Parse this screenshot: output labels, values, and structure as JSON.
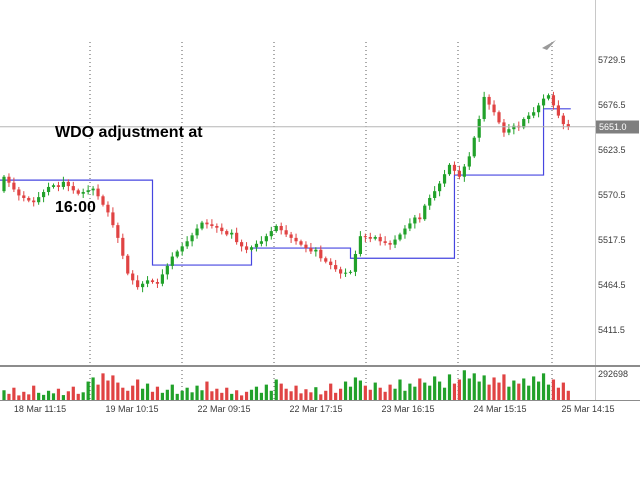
{
  "annotation": {
    "line1": "WDO adjustment at",
    "line2": "16:00"
  },
  "price_axis": {
    "current_label": "5651.0"
  },
  "volume_pane": {
    "max_label": "292698"
  },
  "colors": {
    "up": "#21a12a",
    "down": "#e04343",
    "adjustment_line": "#4646e0",
    "grid": "#5a5a5a",
    "price_line": "#b5b5b5",
    "badge_bg": "#7f7f7f",
    "axis_text": "#3a3a3a",
    "separator": "#8c8c8c",
    "marker": "#9a9a9a"
  },
  "chart_data": {
    "type": "candlestick",
    "title": "WDO adjustment at 16:00",
    "legend_position": "none",
    "grid": "vertical-dashed-only",
    "current_price": 5651.0,
    "price_ticks": [
      5729.5,
      5676.5,
      5623.5,
      5570.5,
      5517.5,
      5464.5,
      5411.5
    ],
    "time_labels": [
      "18 Mar 11:15",
      "19 Mar 10:15",
      "22 Mar 09:15",
      "22 Mar 17:15",
      "23 Mar 16:15",
      "24 Mar 15:15",
      "25 Mar 14:15"
    ],
    "first_open": 5575,
    "ohlc_rule": "open = previous close; wick extents estimated 2-7 points (values read approximately from pixels)",
    "closes": [
      5592,
      5585,
      5577,
      5570,
      5567,
      5564,
      5562,
      5568,
      5574,
      5580,
      5582,
      5580,
      5586,
      5581,
      5576,
      5572,
      5574,
      5576,
      5578,
      5569,
      5559,
      5550,
      5535,
      5520,
      5499,
      5478,
      5470,
      5462,
      5466,
      5470,
      5468,
      5466,
      5477,
      5487,
      5498,
      5504,
      5510,
      5516,
      5523,
      5531,
      5538,
      5536,
      5534,
      5532,
      5528,
      5524,
      5526,
      5515,
      5510,
      5506,
      5509,
      5513,
      5516,
      5522,
      5528,
      5534,
      5529,
      5524,
      5520,
      5516,
      5512,
      5508,
      5504,
      5506,
      5496,
      5492,
      5488,
      5483,
      5478,
      5479,
      5480,
      5501,
      5522,
      5521,
      5519,
      5521,
      5516,
      5514,
      5512,
      5518,
      5524,
      5531,
      5537,
      5544,
      5542,
      5558,
      5567,
      5575,
      5584,
      5595,
      5606,
      5599,
      5592,
      5604,
      5616,
      5638,
      5660,
      5686,
      5677,
      5668,
      5656,
      5644,
      5648,
      5652,
      5650,
      5660,
      5664,
      5668,
      5676,
      5684,
      5688,
      5676,
      5664,
      5654,
      5651
    ],
    "volume_axis_max": 292698,
    "volume_unit": 1000,
    "volumes_thousands": [
      95,
      60,
      120,
      45,
      80,
      55,
      140,
      70,
      50,
      90,
      65,
      110,
      48,
      85,
      130,
      60,
      75,
      180,
      220,
      150,
      260,
      190,
      240,
      170,
      120,
      90,
      140,
      200,
      110,
      160,
      80,
      130,
      70,
      100,
      150,
      60,
      90,
      120,
      75,
      140,
      95,
      180,
      85,
      110,
      70,
      120,
      60,
      95,
      45,
      80,
      100,
      130,
      70,
      150,
      90,
      200,
      160,
      110,
      85,
      140,
      65,
      105,
      75,
      125,
      55,
      90,
      160,
      70,
      110,
      180,
      130,
      220,
      190,
      140,
      100,
      170,
      120,
      80,
      150,
      110,
      200,
      90,
      160,
      130,
      210,
      170,
      140,
      230,
      180,
      120,
      250,
      160,
      200,
      290,
      210,
      260,
      180,
      240,
      150,
      220,
      170,
      250,
      130,
      190,
      160,
      210,
      140,
      230,
      180,
      260,
      150,
      200,
      120,
      170,
      90
    ],
    "adjustment_line": {
      "label": "daily adjustment price (set at 16:00), blue step line",
      "segments": [
        {
          "start_index": 0,
          "end_index": 30,
          "price": 5588
        },
        {
          "start_index": 30,
          "end_index": 50,
          "price": 5488
        },
        {
          "start_index": 50,
          "end_index": 70,
          "price": 5508
        },
        {
          "start_index": 70,
          "end_index": 91,
          "price": 5496
        },
        {
          "start_index": 91,
          "end_index": 109,
          "price": 5594
        },
        {
          "start_index": 109,
          "end_index": 114.5,
          "price": 5672
        }
      ]
    }
  }
}
